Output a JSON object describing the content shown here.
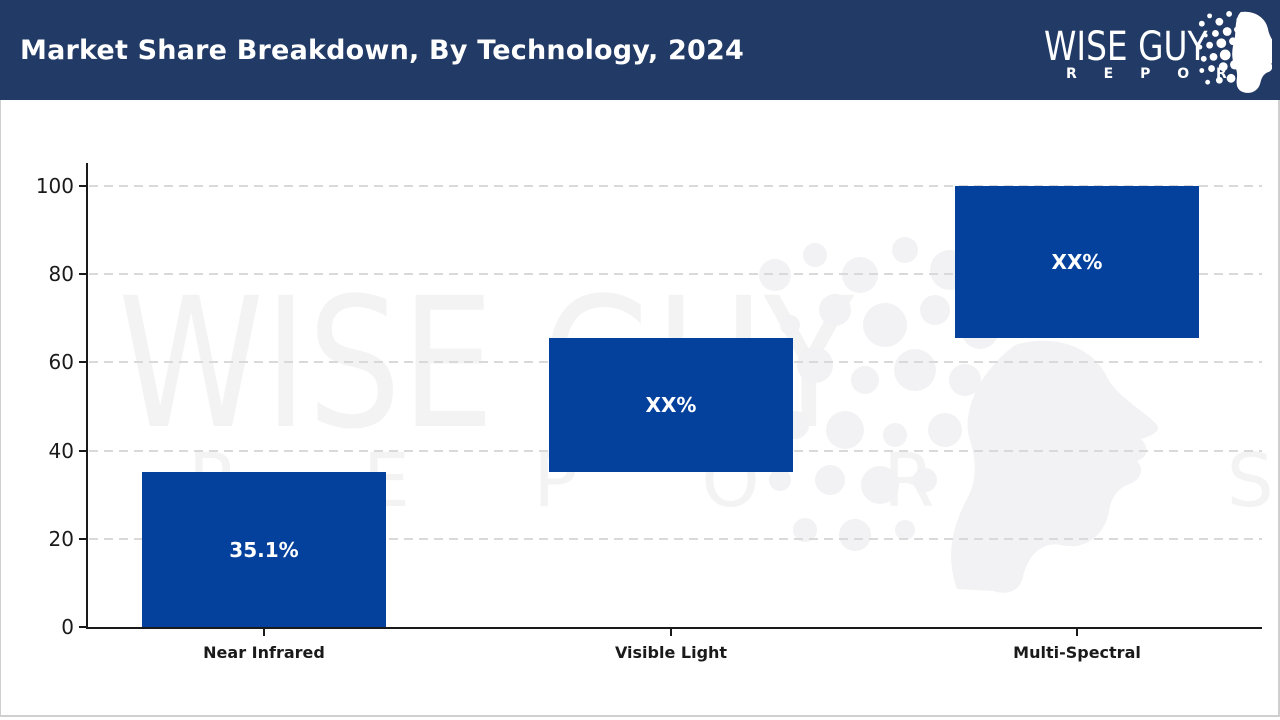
{
  "header": {
    "title": "Market Share Breakdown, By Technology, 2024",
    "bg_color": "#213a66",
    "logo": {
      "line1": "WISE GUY",
      "line2": "R E P O R T S"
    }
  },
  "watermark": {
    "line1": "WISE GUY",
    "line2": "R E P O R T S"
  },
  "chart_data": {
    "type": "bar",
    "subtype": "waterfall-breakdown",
    "title": "Market Share Breakdown, By Technology, 2024",
    "categories": [
      "Near Infrared",
      "Visible Light",
      "Multi-Spectral"
    ],
    "bars": [
      {
        "category": "Near Infrared",
        "start": 0,
        "end": 35.1,
        "label": "35.1%"
      },
      {
        "category": "Visible Light",
        "start": 35.1,
        "end": 65.5,
        "label": "XX%"
      },
      {
        "category": "Multi-Spectral",
        "start": 65.5,
        "end": 100,
        "label": "XX%"
      }
    ],
    "y_ticks": [
      0,
      20,
      40,
      60,
      80,
      100
    ],
    "ylim": [
      0,
      105.2
    ],
    "grid": true,
    "legend": false,
    "bar_color": "#04419c",
    "bar_label_color": "#ffffff",
    "axis_color": "#1a1a1a",
    "gridline_color": "#d9d9d9"
  }
}
